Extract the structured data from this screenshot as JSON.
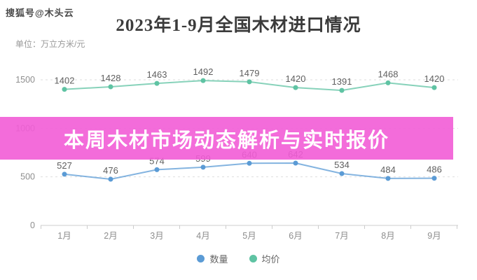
{
  "watermark": "搜狐号@木头云",
  "header": {
    "title": "2023年1-9月全国木材进口情况",
    "unit_label": "单位：万立方米/元"
  },
  "overlay_banner": {
    "text": "本周木材市场动态解析与实时报价",
    "bg_color": "#f25cd6",
    "bg_opacity": 0.9,
    "text_color": "#ffffff"
  },
  "chart_data": {
    "type": "line",
    "title": "2023年1-9月全国木材进口情况",
    "unit": "万立方米/元",
    "categories": [
      "1月",
      "2月",
      "3月",
      "4月",
      "5月",
      "6月",
      "7月",
      "8月",
      "9月"
    ],
    "series": [
      {
        "name": "数量",
        "color": "#5b9bd5",
        "values": [
          527,
          476,
          574,
          599,
          640,
          642,
          534,
          484,
          486
        ]
      },
      {
        "name": "均价",
        "color": "#5fc3a3",
        "values": [
          1402,
          1428,
          1463,
          1492,
          1479,
          1420,
          1391,
          1468,
          1420
        ]
      }
    ],
    "y_ticks": [
      0,
      500,
      1000,
      1500
    ],
    "ylim": [
      0,
      1750
    ],
    "grid": "horizontal-dashed",
    "data_labels": true,
    "legend_position": "bottom",
    "label_color": "#5f5f5f",
    "axis_text_color": "#8e8e8e",
    "grid_color": "#dedede",
    "axis_line_color": "#cccccc"
  }
}
